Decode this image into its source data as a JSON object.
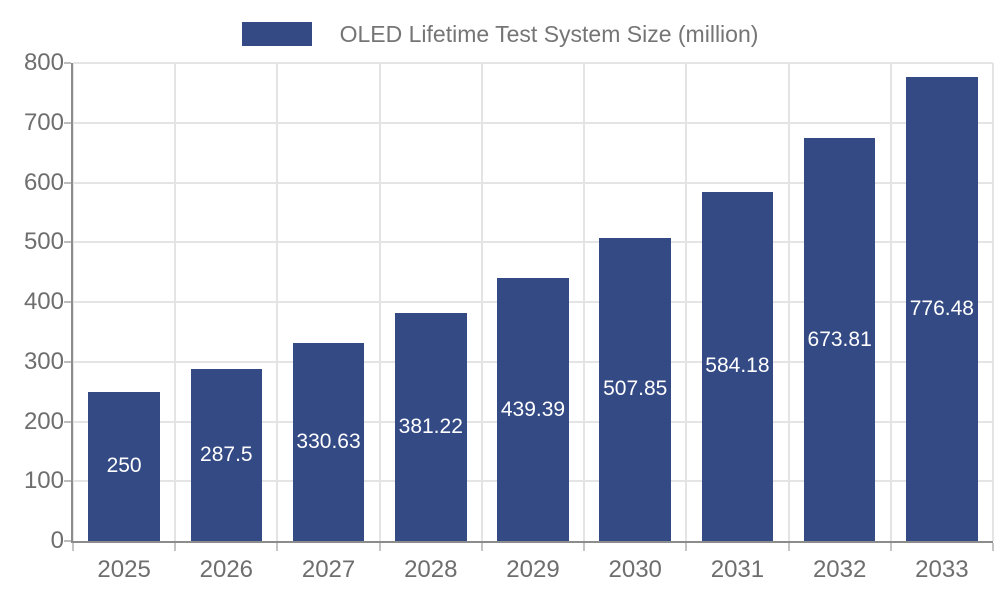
{
  "chart_data": {
    "type": "bar",
    "title": "",
    "legend_label": "OLED Lifetime Test System Size (million)",
    "legend_position": "top-center",
    "categories": [
      "2025",
      "2026",
      "2027",
      "2028",
      "2029",
      "2030",
      "2031",
      "2032",
      "2033"
    ],
    "values": [
      250,
      287.5,
      330.63,
      381.22,
      439.39,
      507.85,
      584.18,
      673.81,
      776.48
    ],
    "value_labels": [
      "250",
      "287.5",
      "330.63",
      "381.22",
      "439.39",
      "507.85",
      "584.18",
      "673.81",
      "776.48"
    ],
    "xlabel": "",
    "ylabel": "",
    "ylim": [
      0,
      800
    ],
    "y_tick_step": 100,
    "y_tick_labels": [
      "0",
      "100",
      "200",
      "300",
      "400",
      "500",
      "600",
      "700",
      "800"
    ],
    "grid": true,
    "colors": {
      "bar": "#344a85",
      "grid": "#e4e4e4",
      "axis": "#8c8c8c",
      "tick_label": "#6e6e6e",
      "legend_text": "#757575",
      "value_label": "#ffffff",
      "background": "#ffffff"
    }
  }
}
